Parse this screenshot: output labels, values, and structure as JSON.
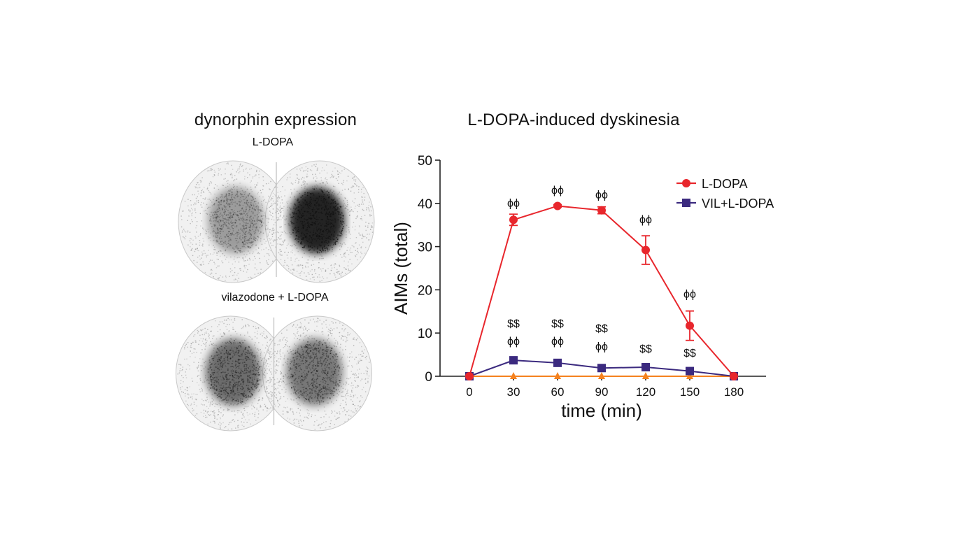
{
  "left_panel": {
    "title": "dynorphin expression",
    "top_label": "L-DOPA",
    "bottom_label": "vilazodone + L-DOPA"
  },
  "colors": {
    "ldopa": "#e8262c",
    "vil": "#3b2a7f",
    "control": "#f5821f",
    "axis": "#222222"
  },
  "chart_data": {
    "type": "line",
    "title": "L-DOPA-induced dyskinesia",
    "xlabel": "time (min)",
    "ylabel": "AIMs (total)",
    "x": [
      0,
      30,
      60,
      90,
      120,
      150,
      180
    ],
    "xticks": [
      "0",
      "30",
      "60",
      "90",
      "120",
      "150",
      "180"
    ],
    "yticks": [
      "0",
      "10",
      "20",
      "30",
      "40",
      "50"
    ],
    "ylim": [
      0,
      50
    ],
    "series": [
      {
        "name": "L-DOPA",
        "marker": "circle",
        "values": [
          0,
          36.2,
          39.4,
          38.4,
          29.2,
          11.7,
          0
        ],
        "errors": [
          0,
          1.3,
          0.3,
          0.8,
          3.3,
          3.4,
          0
        ]
      },
      {
        "name": "VIL+L-DOPA",
        "marker": "square",
        "values": [
          0,
          3.7,
          3.1,
          1.9,
          2.1,
          1.2,
          0
        ],
        "errors": [
          0,
          0.5,
          0.6,
          0.3,
          0.4,
          0.3,
          0
        ]
      },
      {
        "name": "",
        "marker": "triangle",
        "values": [
          0,
          0,
          0,
          0,
          0,
          0,
          0
        ],
        "errors": [
          0,
          0,
          0,
          0,
          0,
          0,
          0
        ]
      }
    ],
    "legend": [
      "L-DOPA",
      "VIL+L-DOPA"
    ],
    "annotations": [
      {
        "x": 30,
        "y": 39.2,
        "text": "ϕϕ"
      },
      {
        "x": 60,
        "y": 42.2,
        "text": "ϕϕ"
      },
      {
        "x": 90,
        "y": 41.2,
        "text": "ϕϕ"
      },
      {
        "x": 120,
        "y": 35.4,
        "text": "ϕϕ"
      },
      {
        "x": 150,
        "y": 18.2,
        "text": "ϕϕ"
      },
      {
        "x": 30,
        "y": 11.3,
        "text": "$$"
      },
      {
        "x": 30,
        "y": 7.3,
        "text": "ϕϕ"
      },
      {
        "x": 60,
        "y": 11.3,
        "text": "$$"
      },
      {
        "x": 60,
        "y": 7.3,
        "text": "ϕϕ"
      },
      {
        "x": 90,
        "y": 10.2,
        "text": "$$"
      },
      {
        "x": 90,
        "y": 6.1,
        "text": "ϕϕ"
      },
      {
        "x": 120,
        "y": 5.5,
        "text": "$$"
      },
      {
        "x": 150,
        "y": 4.5,
        "text": "$$"
      }
    ]
  }
}
